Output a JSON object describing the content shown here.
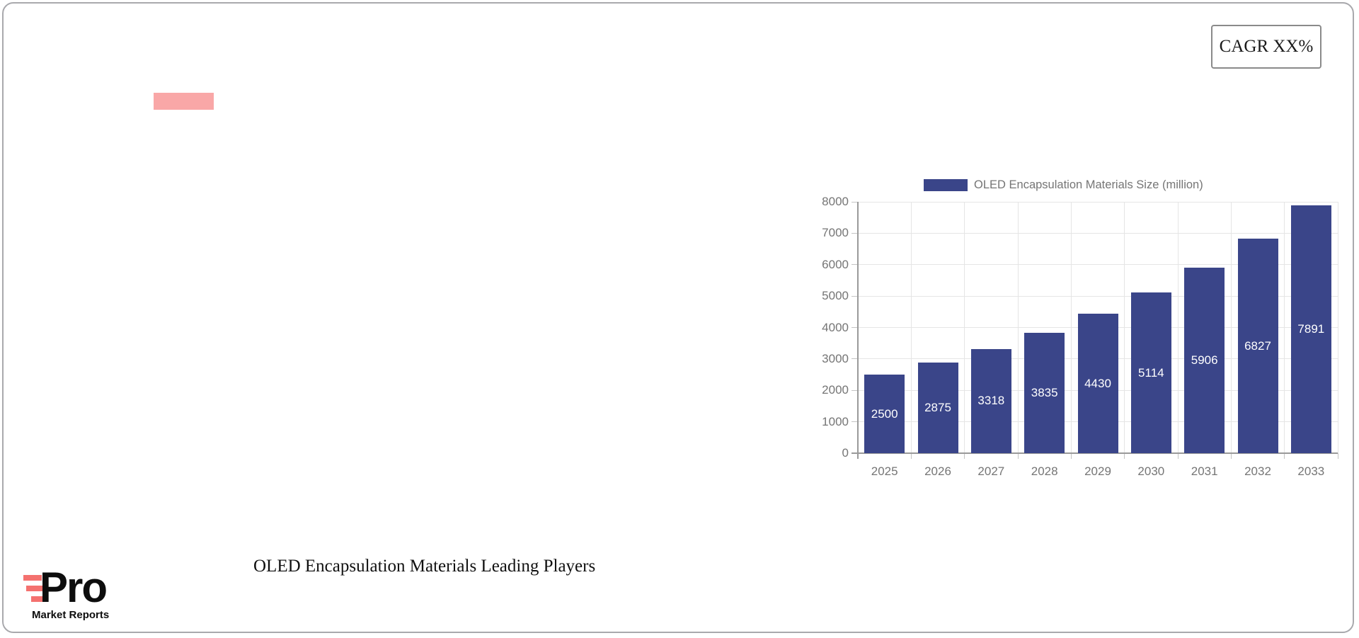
{
  "cagr_badge": {
    "label": "CAGR XX%"
  },
  "decorations": {
    "highlight_bar_color": "#f9a7a7",
    "frame_border_color": "#a9a9ad"
  },
  "chart_data": {
    "type": "bar",
    "title": "",
    "series_name": "OLED Encapsulation Materials Size (million)",
    "categories": [
      "2025",
      "2026",
      "2027",
      "2028",
      "2029",
      "2030",
      "2031",
      "2032",
      "2033"
    ],
    "values": [
      2500,
      2875,
      3318,
      3835,
      4430,
      5114,
      5906,
      6827,
      7891
    ],
    "ylim": [
      0,
      8000
    ],
    "ytick_step": 1000,
    "grid": true,
    "legend_position": "top",
    "bar_color": "#3a4589",
    "grid_color": "#e5e5e5",
    "axis_color": "#9a9a9a",
    "tick_label_color": "#757575",
    "value_label_color": "#ffffff"
  },
  "footer": {
    "title": "OLED Encapsulation Materials Leading Players",
    "logo": {
      "text": "Pro",
      "subtext": "Market Reports",
      "accent_color": "#f4716f"
    }
  }
}
